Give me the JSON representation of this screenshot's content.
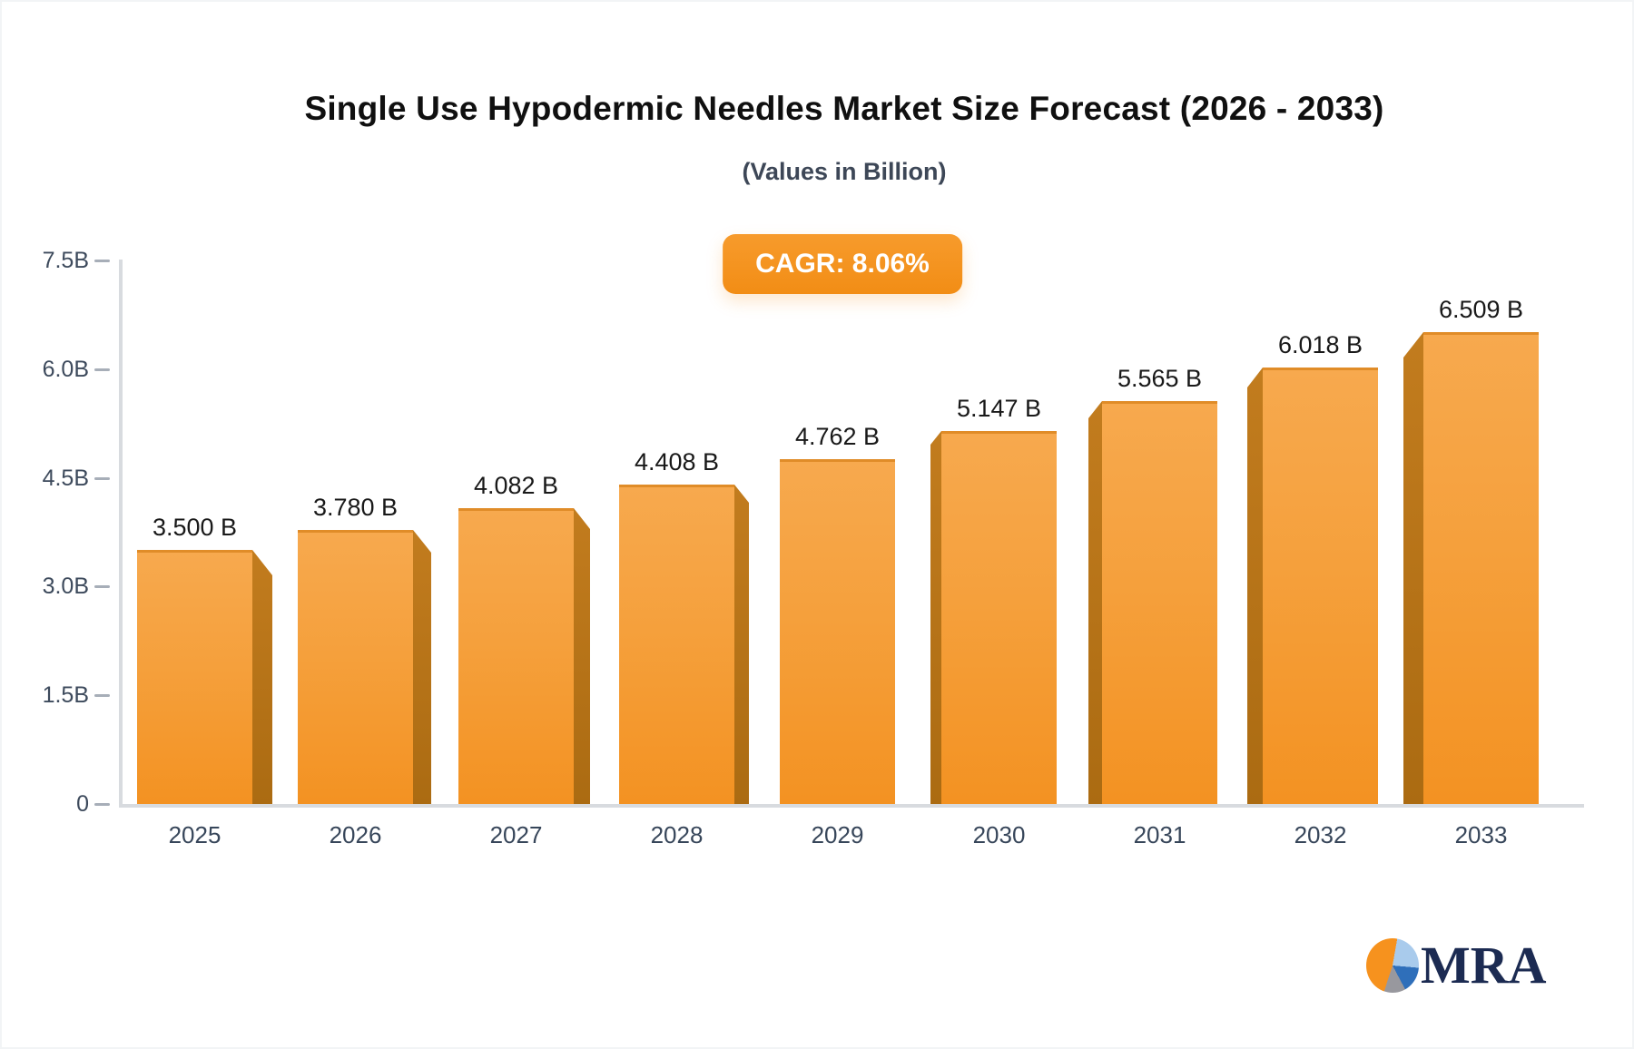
{
  "header": {
    "title": "Single Use Hypodermic Needles Market Size Forecast (2026 - 2033)",
    "subtitle": "(Values in Billion)"
  },
  "badge": {
    "label": "CAGR: 8.06%"
  },
  "chart_data": {
    "type": "bar",
    "title": "Single Use Hypodermic Needles Market Size Forecast (2026 - 2033)",
    "subtitle": "(Values in Billion)",
    "cagr_percent": 8.06,
    "unit": "Billion",
    "categories": [
      "2025",
      "2026",
      "2027",
      "2028",
      "2029",
      "2030",
      "2031",
      "2032",
      "2033"
    ],
    "values": [
      3.5,
      3.78,
      4.082,
      4.408,
      4.762,
      5.147,
      5.565,
      6.018,
      6.509
    ],
    "value_labels": [
      "3.500 B",
      "3.780 B",
      "4.082 B",
      "4.408 B",
      "4.762 B",
      "5.147 B",
      "5.565 B",
      "6.018 B",
      "6.509 B"
    ],
    "ylim": [
      0,
      7.5
    ],
    "yticks": [
      0,
      1.5,
      3.0,
      4.5,
      6.0,
      7.5
    ],
    "ytick_labels": [
      "0",
      "1.5B",
      "3.0B",
      "4.5B",
      "6.0B",
      "7.5B"
    ],
    "grid": false,
    "legend": "none",
    "bar_style": "3d-extruded",
    "colors": {
      "bar_top": "#F7A94E",
      "bar_bottom": "#F39222",
      "bar_side": "#B87517",
      "axis_line": "#D8DBDF",
      "axis_text": "#3D4A5C",
      "value_text": "#191919",
      "badge_orange": "#F6921E"
    }
  },
  "logo": {
    "text": "MRA",
    "icon": "pie-chart-icon"
  }
}
